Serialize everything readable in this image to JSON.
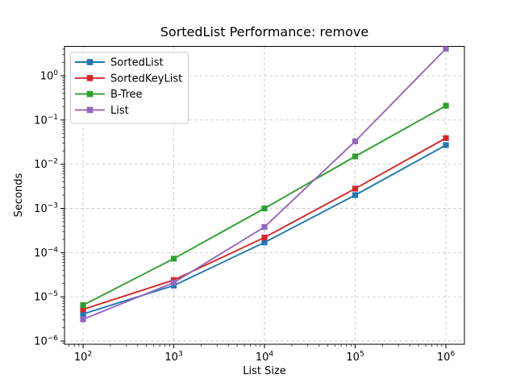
{
  "chart_data": {
    "type": "line",
    "title": "SortedList Performance: remove",
    "xlabel": "List Size",
    "ylabel": "Seconds",
    "x_scale": "log",
    "y_scale": "log",
    "x": [
      100,
      1000,
      10000,
      100000,
      1000000
    ],
    "series": [
      {
        "name": "SortedList",
        "color": "#1f77b4",
        "marker": "square",
        "values": [
          4.1e-06,
          1.8e-05,
          0.00017,
          0.002,
          0.027
        ]
      },
      {
        "name": "SortedKeyList",
        "color": "#d62728",
        "marker": "square",
        "values": [
          5.2e-06,
          2.4e-05,
          0.00022,
          0.0028,
          0.039
        ]
      },
      {
        "name": "B-Tree",
        "color": "#2ca02c",
        "marker": "square",
        "values": [
          6.5e-06,
          7.3e-05,
          0.001,
          0.015,
          0.21
        ]
      },
      {
        "name": "List",
        "color": "#9467bd",
        "marker": "square",
        "values": [
          3.1e-06,
          2.1e-05,
          0.00038,
          0.033,
          4.1
        ]
      }
    ],
    "xlim": [
      62.4,
      1600000
    ],
    "ylim": [
      8.45e-07,
      4.63
    ],
    "x_tick_exponents": [
      2,
      3,
      4,
      5,
      6
    ],
    "y_tick_exponents": [
      0,
      -1,
      -2,
      -3,
      -4,
      -5,
      -6
    ],
    "grid": {
      "on": true,
      "which": "major",
      "style": "dashed",
      "color": "#c9c9c9"
    },
    "legend": {
      "position": "upper-left",
      "entries": [
        "SortedList",
        "SortedKeyList",
        "B-Tree",
        "List"
      ]
    },
    "frame_color": "#000000",
    "text_color": "#000000"
  }
}
